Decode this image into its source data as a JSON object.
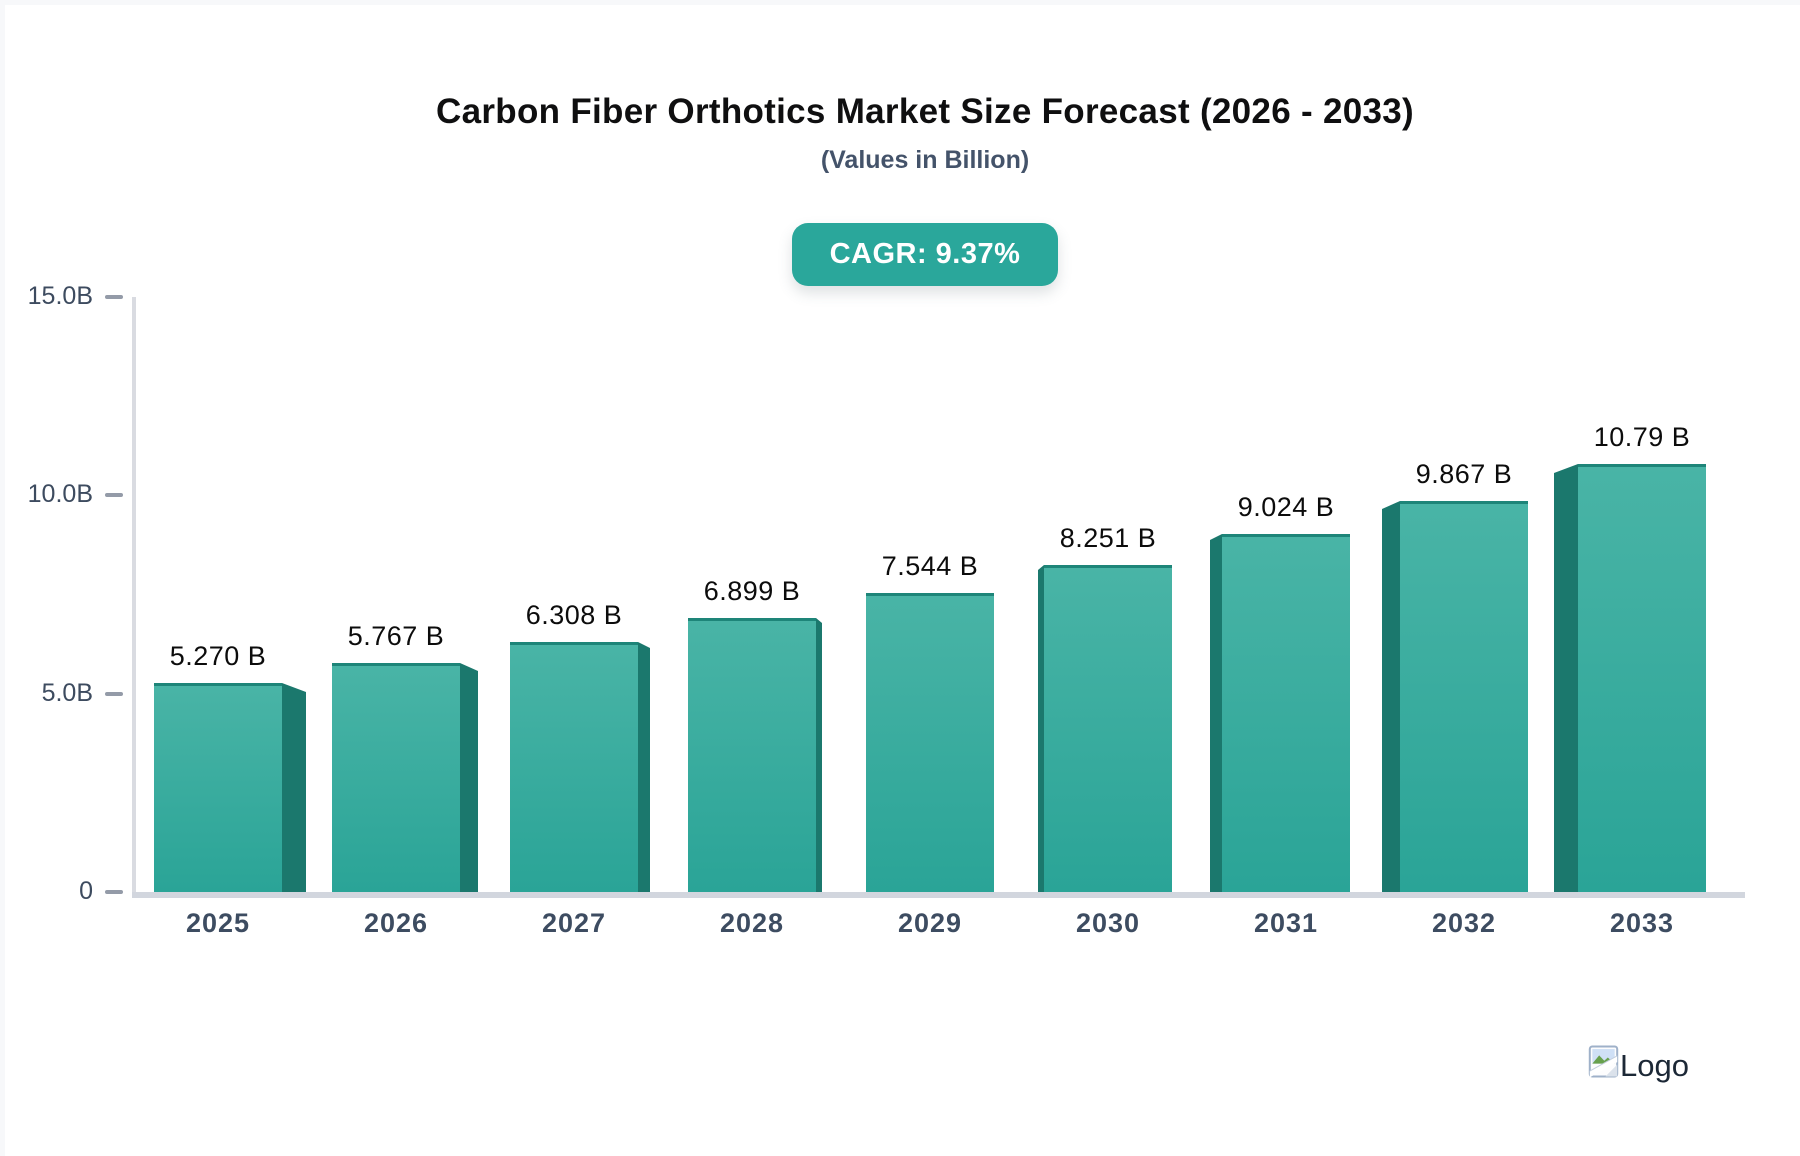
{
  "header": {
    "title": "Carbon Fiber Orthotics Market Size Forecast (2026 - 2033)",
    "subtitle": "(Values in Billion)",
    "cagr_label": "CAGR: 9.37%"
  },
  "colors": {
    "accent_teal": "#2aa79b",
    "bar_face_top": "#49b4a6",
    "bar_face_bottom": "#2aa497",
    "bar_top_edge": "#1e8579",
    "bar_side": "#1b786d",
    "axis_gray": "#d2d6de",
    "tick_text": "#3d4b5f"
  },
  "logo": {
    "alt_text": "Logo"
  },
  "chart_data": {
    "type": "bar",
    "title": "Carbon Fiber Orthotics Market Size Forecast (2026 - 2033)",
    "subtitle": "(Values in Billion)",
    "cagr_pct": 9.37,
    "categories": [
      "2025",
      "2026",
      "2027",
      "2028",
      "2029",
      "2030",
      "2031",
      "2032",
      "2033"
    ],
    "values": [
      5.27,
      5.767,
      6.308,
      6.899,
      7.544,
      8.251,
      9.024,
      9.867,
      10.79
    ],
    "value_labels": [
      "5.270 B",
      "5.767 B",
      "6.308 B",
      "6.899 B",
      "7.544 B",
      "8.251 B",
      "9.024 B",
      "9.867 B",
      "10.79 B"
    ],
    "xlabel": "",
    "ylabel": "",
    "ylim": [
      0,
      15
    ],
    "yticks": [
      {
        "value": 15,
        "label": "15.0B"
      },
      {
        "value": 10,
        "label": "10.0B"
      },
      {
        "value": 5,
        "label": "5.0B"
      },
      {
        "value": 0,
        "label": "0"
      }
    ],
    "grid": false,
    "legend": false,
    "style": "3d-extruded-columns"
  }
}
